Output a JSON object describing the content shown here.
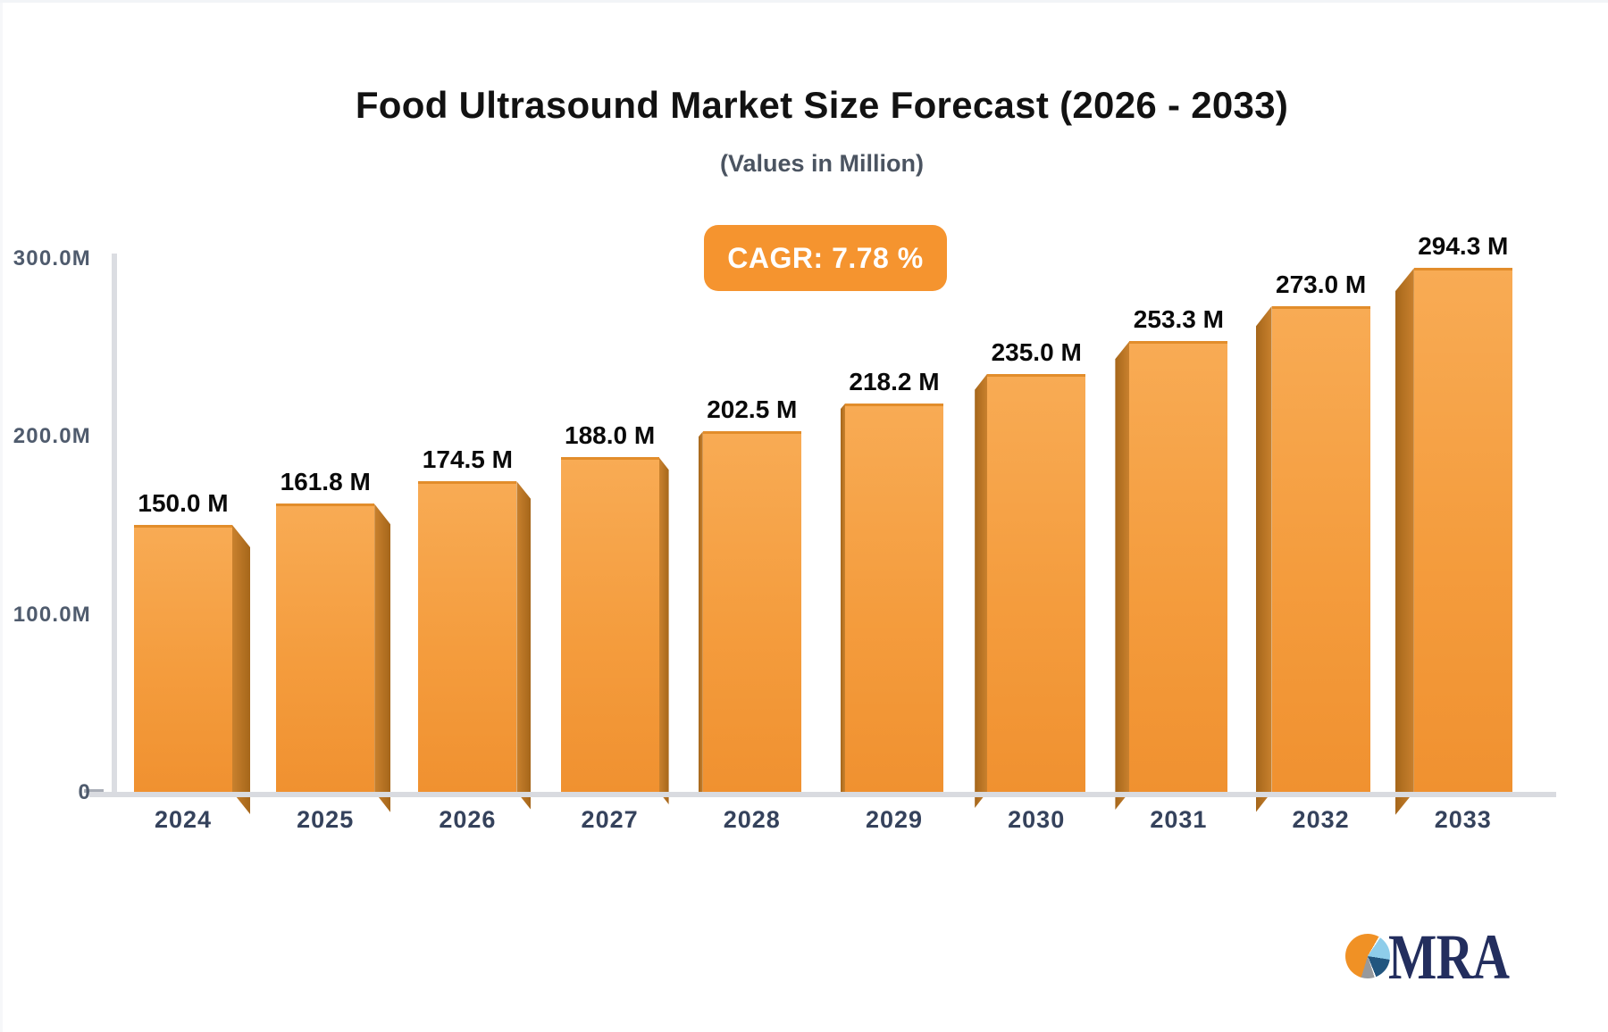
{
  "page": {
    "background": "#ffffff"
  },
  "header": {
    "title": "Food Ultrasound Market Size Forecast (2026 - 2033)",
    "subtitle": "(Values in Million)"
  },
  "cagr_badge": {
    "label": "CAGR: 7.78 %",
    "background_color": "#F5942F",
    "text_color": "#ffffff"
  },
  "chart_data": {
    "type": "bar",
    "title": "Food Ultrasound Market Size Forecast (2026 - 2033)",
    "subtitle": "(Values in Million)",
    "annotation": "CAGR: 7.78 %",
    "categories": [
      "2024",
      "2025",
      "2026",
      "2027",
      "2028",
      "2029",
      "2030",
      "2031",
      "2032",
      "2033"
    ],
    "values": [
      150.0,
      161.8,
      174.5,
      188.0,
      202.5,
      218.2,
      235.0,
      253.3,
      273.0,
      294.3
    ],
    "value_labels": [
      "150.0 M",
      "161.8 M",
      "174.5 M",
      "188.0 M",
      "202.5 M",
      "218.2 M",
      "235.0 M",
      "253.3 M",
      "273.0 M",
      "294.3 M"
    ],
    "y_ticks": [
      {
        "label": "300.0M",
        "value": 300
      },
      {
        "label": "200.0M",
        "value": 200
      },
      {
        "label": "100.0M",
        "value": 100
      },
      {
        "label": "0",
        "value": 0
      }
    ],
    "ylim": [
      0,
      300
    ],
    "xlabel": "",
    "ylabel": "",
    "grid": false,
    "legend": false,
    "bar_color": "#F49C3D",
    "bar_side_color": "#AE6C1C",
    "bar_top_edge_color": "#E28D2B",
    "axis_color": "#d9dbe0"
  },
  "logo": {
    "text": "MRA",
    "text_color": "#232E5E",
    "pie_colors": {
      "orange": "#F09125",
      "light_blue": "#8ECDEA",
      "navy": "#22567F",
      "gray": "#97999C"
    }
  }
}
